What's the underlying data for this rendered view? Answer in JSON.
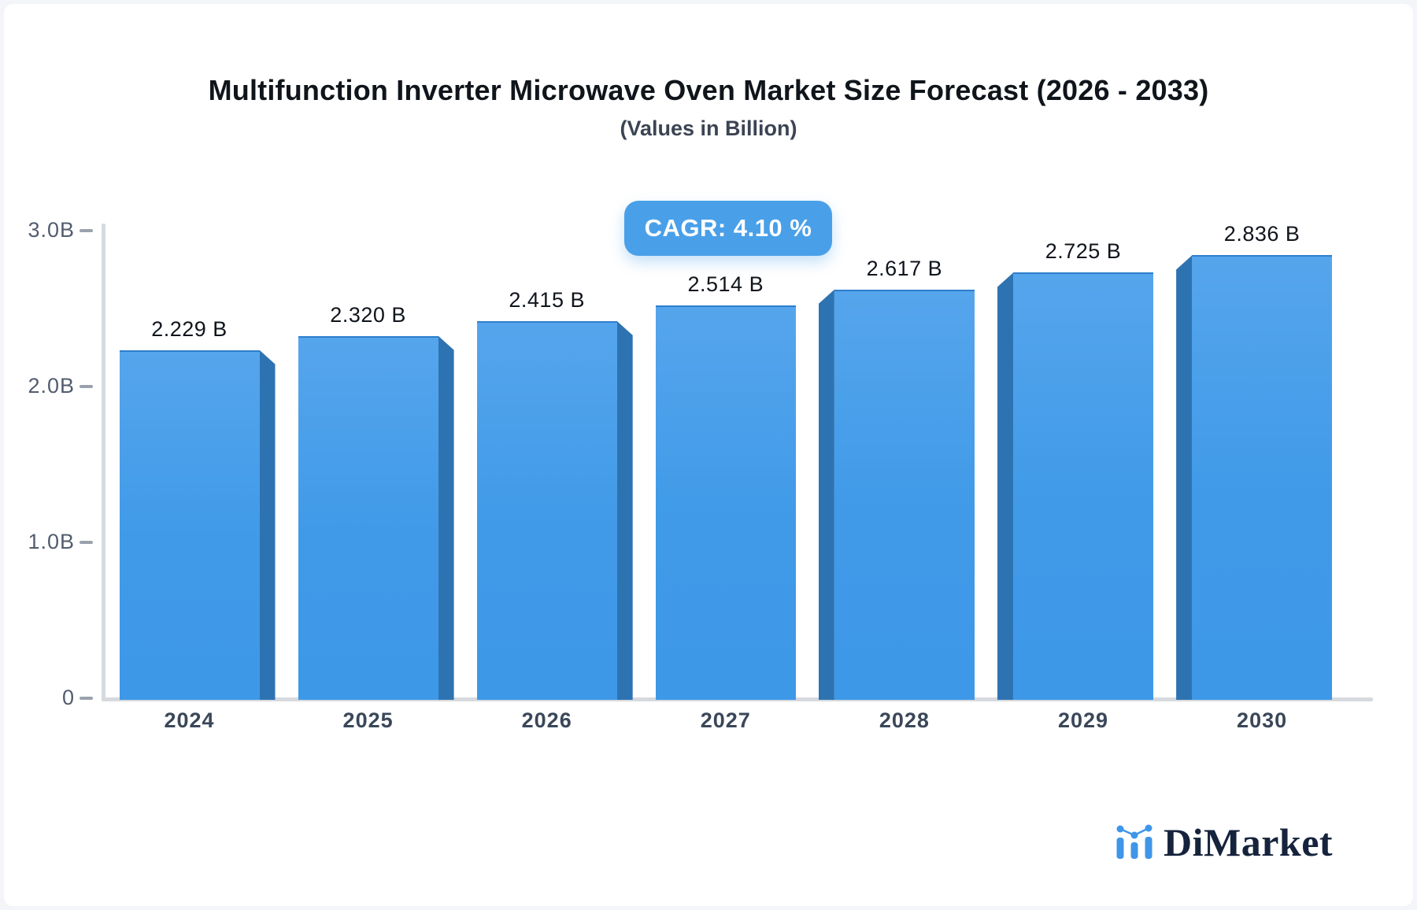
{
  "page": {
    "background": "#f3f5f8",
    "card_background": "#ffffff"
  },
  "header": {
    "title": "Multifunction Inverter Microwave Oven Market Size Forecast (2026 - 2033)",
    "subtitle": "(Values in Billion)"
  },
  "badge": {
    "label": "CAGR: 4.10 %",
    "background": "#49a0e9",
    "text_color": "#ffffff"
  },
  "chart_data": {
    "type": "bar",
    "title": "Multifunction Inverter Microwave Oven Market Size Forecast (2026 - 2033)",
    "subtitle": "(Values in Billion)",
    "annotation": "CAGR: 4.10 %",
    "categories": [
      "2024",
      "2025",
      "2026",
      "2027",
      "2028",
      "2029",
      "2030"
    ],
    "values": [
      2.229,
      2.32,
      2.415,
      2.514,
      2.617,
      2.725,
      2.836
    ],
    "value_labels": [
      "2.229 B",
      "2.320 B",
      "2.415 B",
      "2.514 B",
      "2.617 B",
      "2.725 B",
      "2.836 B"
    ],
    "unit": "Billion",
    "ylim": [
      0,
      3.0
    ],
    "y_ticks": [
      {
        "value": 0,
        "label": "0"
      },
      {
        "value": 1,
        "label": "1.0B"
      },
      {
        "value": 2,
        "label": "2.0B"
      },
      {
        "value": 3,
        "label": "3.0B"
      }
    ],
    "grid": false,
    "legend": false,
    "bar_color": "#42a0ea",
    "bar_side_color": "#2e73b1",
    "axis_color": "#d6d9de"
  },
  "brand": {
    "name": "DiMarket",
    "icon": "mini-bar-chart-logo-icon",
    "text_color": "#16233c",
    "accent_color": "#3f96e8"
  }
}
